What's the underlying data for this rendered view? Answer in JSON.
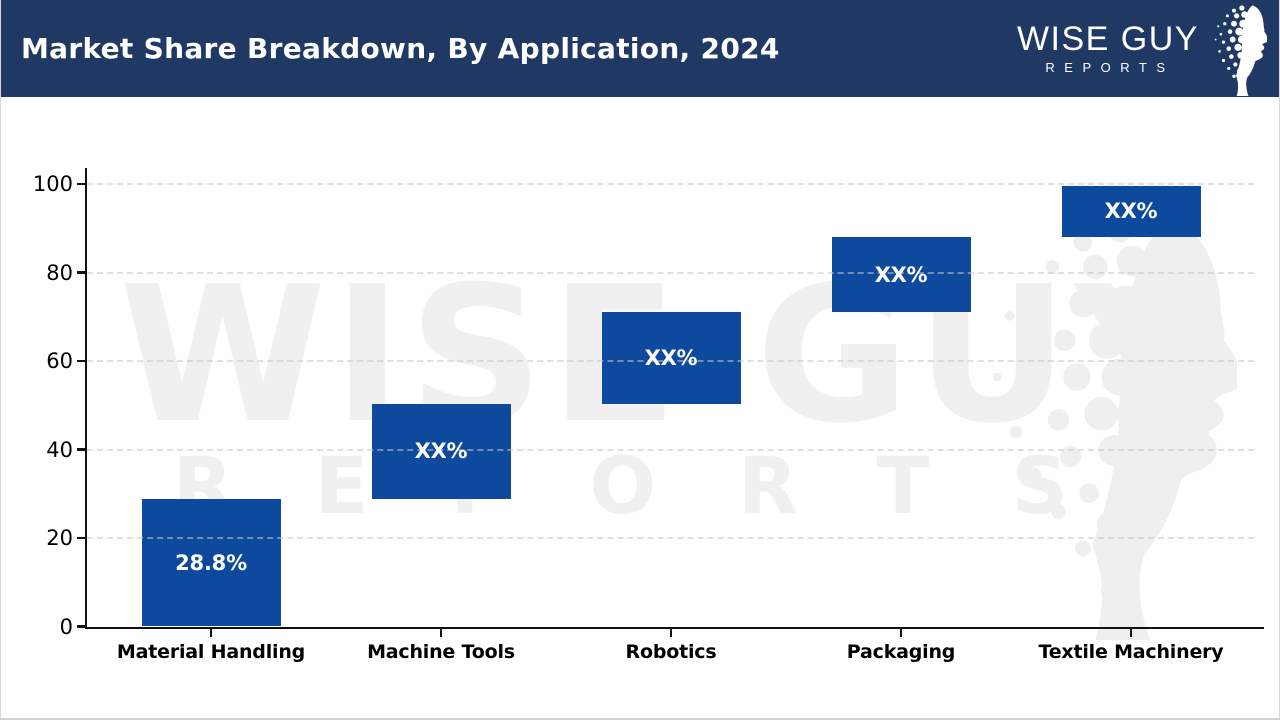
{
  "header": {
    "title": "Market Share Breakdown, By Application, 2024",
    "brand_line1": "WISE GUY",
    "brand_line2": "REPORTS",
    "bg_color": "#1f3864"
  },
  "watermark": {
    "line1": "WISE GUY",
    "line2": "REPORTS"
  },
  "chart_data": {
    "type": "bar",
    "subtype": "floating-waterfall",
    "title": "Market Share Breakdown, By Application, 2024",
    "categories": [
      "Material Handling",
      "Machine Tools",
      "Robotics",
      "Packaging",
      "Textile Machinery"
    ],
    "segments": [
      {
        "category": "Material Handling",
        "start": 0,
        "end": 28.8,
        "label": "28.8%"
      },
      {
        "category": "Machine Tools",
        "start": 28.8,
        "end": 50.3,
        "label": "XX%"
      },
      {
        "category": "Robotics",
        "start": 50.3,
        "end": 71.0,
        "label": "XX%"
      },
      {
        "category": "Packaging",
        "start": 71.0,
        "end": 88.0,
        "label": "XX%"
      },
      {
        "category": "Textile Machinery",
        "start": 88.0,
        "end": 99.6,
        "label": "XX%"
      }
    ],
    "yticks": [
      0,
      20,
      40,
      60,
      80,
      100
    ],
    "ylim": [
      0,
      105
    ],
    "xlabel": "",
    "ylabel": "",
    "grid": "horizontal-dashed",
    "legend": "none",
    "bar_color": "#0d4a9e",
    "bar_label_color": "#ffffff",
    "axis_color": "#111111",
    "gridline_color": "#c7c7c7"
  }
}
